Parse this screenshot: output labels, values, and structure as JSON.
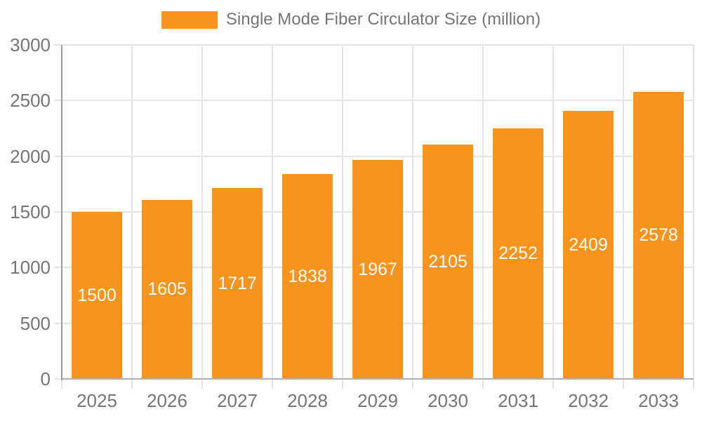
{
  "legend": {
    "label": "Single Mode Fiber Circulator Size (million)"
  },
  "colors": {
    "bar": "#f7941e",
    "bar_value_label": "#ffffff",
    "axis_text": "#757575",
    "legend_text": "#757575",
    "grid_line": "#e4e4e4",
    "y_axis_line": "#9a9a9a",
    "x_axis_line": "#b0b0b0",
    "background": "#ffffff"
  },
  "chart_data": {
    "type": "bar",
    "title": "",
    "xlabel": "",
    "ylabel": "",
    "categories": [
      "2025",
      "2026",
      "2027",
      "2028",
      "2029",
      "2030",
      "2031",
      "2032",
      "2033"
    ],
    "series": [
      {
        "name": "Single Mode Fiber Circulator Size (million)",
        "values": [
          1500,
          1605,
          1717,
          1838,
          1967,
          2105,
          2252,
          2409,
          2578
        ]
      }
    ],
    "ylim": [
      0,
      3000
    ],
    "yticks": [
      0,
      500,
      1000,
      1500,
      2000,
      2500,
      3000
    ],
    "grid": true,
    "legend_position": "top-center",
    "value_labels": "inside-center"
  }
}
